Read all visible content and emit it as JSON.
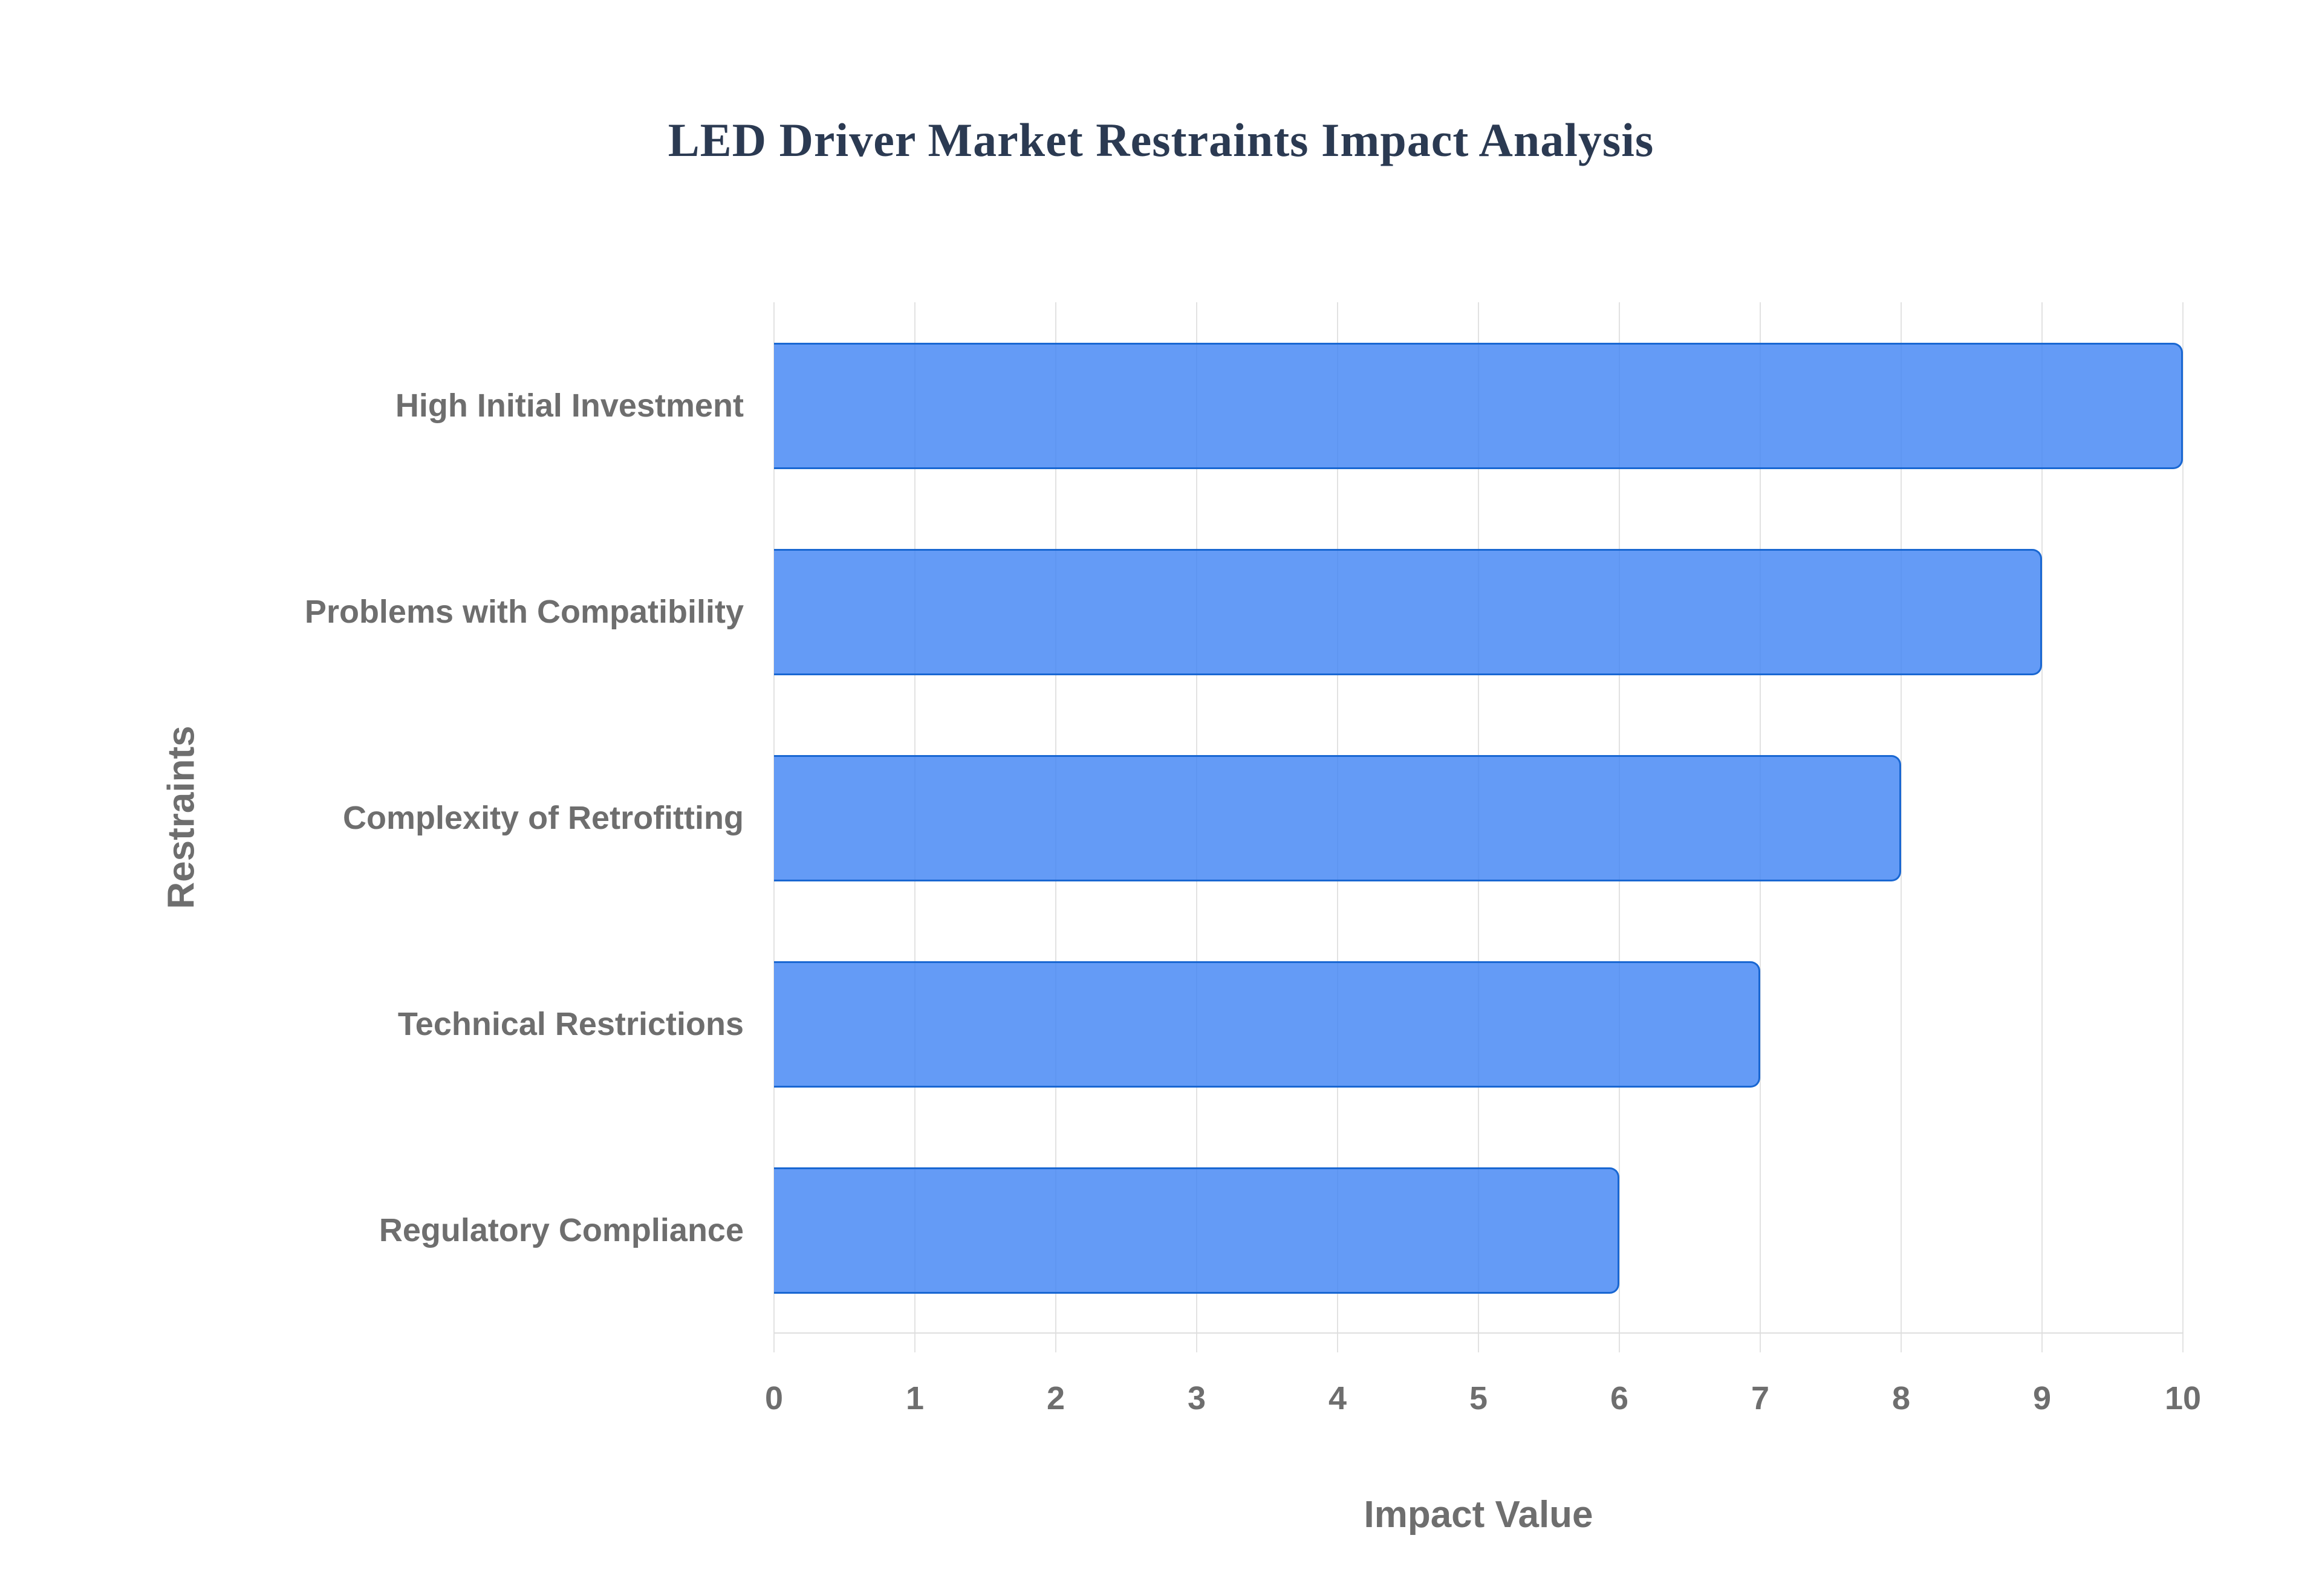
{
  "title": {
    "text": "LED Driver Market Restraints Impact Analysis",
    "color": "#2b3a52"
  },
  "chart_data": {
    "type": "bar",
    "orientation": "horizontal",
    "title": "LED Driver Market Restraints Impact Analysis",
    "xlabel": "Impact Value",
    "ylabel": "Restraints",
    "categories": [
      "High Initial Investment",
      "Problems with Compatibility",
      "Complexity of Retrofitting",
      "Technical Restrictions",
      "Regulatory Compliance"
    ],
    "values": [
      10,
      9,
      8,
      7,
      6
    ],
    "xlim": [
      0,
      10
    ],
    "xticks": [
      0,
      1,
      2,
      3,
      4,
      5,
      6,
      7,
      8,
      9,
      10
    ],
    "grid": "vertical",
    "legend": "none",
    "colors": {
      "bar_fill": "#4285f4",
      "bar_fill_opacity": 0.82,
      "bar_border": "#1967d2",
      "gridline": "#e2e2e2",
      "baseline": "#dedede",
      "axis_text": "#6e6e6e",
      "title_text": "#2b3a52"
    }
  }
}
